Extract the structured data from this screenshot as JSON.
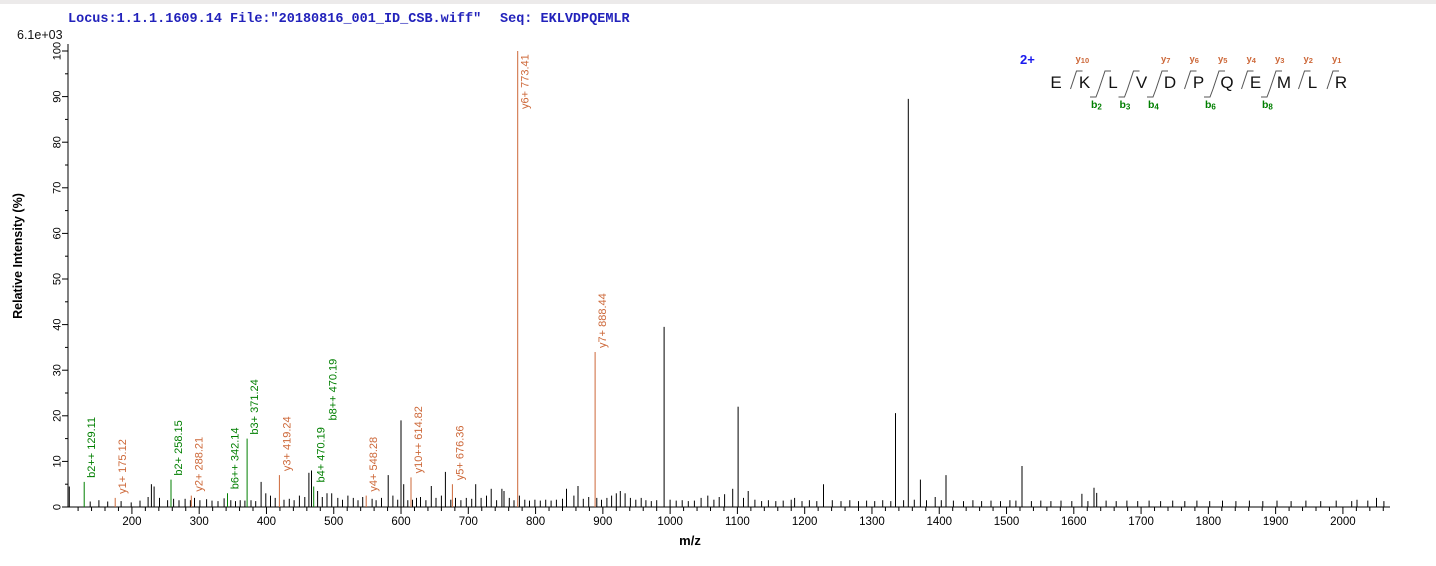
{
  "header": {
    "locus_file": "Locus:1.1.1.1609.14 File:\"20180816_001_ID_CSB.wiff\"",
    "seq_label": "Seq: ",
    "seq_value": "EKLVDPQEMLR",
    "intensity_scale": "6.1e+03"
  },
  "peptide": {
    "charge": "2+",
    "residues": [
      "E",
      "K",
      "L",
      "V",
      "D",
      "P",
      "Q",
      "E",
      "M",
      "L",
      "R"
    ],
    "y_ions": [
      {
        "gap": 1,
        "base": "y",
        "sub": "10"
      },
      {
        "gap": 4,
        "base": "y",
        "sub": "7"
      },
      {
        "gap": 5,
        "base": "y",
        "sub": "6"
      },
      {
        "gap": 6,
        "base": "y",
        "sub": "5"
      },
      {
        "gap": 7,
        "base": "y",
        "sub": "4"
      },
      {
        "gap": 8,
        "base": "y",
        "sub": "3"
      },
      {
        "gap": 9,
        "base": "y",
        "sub": "2"
      },
      {
        "gap": 10,
        "base": "y",
        "sub": "1"
      }
    ],
    "b_ions": [
      {
        "gap": 2,
        "base": "b",
        "sub": "2"
      },
      {
        "gap": 3,
        "base": "b",
        "sub": "3"
      },
      {
        "gap": 4,
        "base": "b",
        "sub": "4"
      },
      {
        "gap": 6,
        "base": "b",
        "sub": "6"
      },
      {
        "gap": 8,
        "base": "b",
        "sub": "8"
      }
    ]
  },
  "colors": {
    "y_ion": "#cd6839",
    "b_ion": "#007f00",
    "header_blue": "#2222bb",
    "charge_blue": "#1a1aee",
    "peak_black": "#000000"
  },
  "chart_data": {
    "type": "bar",
    "subtype": "ms2-mass-spectrum",
    "xlabel": "m/z",
    "ylabel": "Relative Intensity (%)",
    "x_range": [
      105,
      2070
    ],
    "ylim": [
      0,
      100
    ],
    "x_major_ticks": [
      200,
      300,
      400,
      500,
      600,
      700,
      800,
      900,
      1000,
      1100,
      1200,
      1300,
      1400,
      1500,
      1600,
      1700,
      1800,
      1900,
      2000
    ],
    "x_minor_step": 20,
    "y_major_step": 10,
    "y_minor_step": 5,
    "grid": false,
    "labeled_peaks": [
      {
        "mz": 129.11,
        "h": 5.5,
        "ion": "b",
        "labels": [
          "b2++ 129.11"
        ]
      },
      {
        "mz": 175.12,
        "h": 2.0,
        "ion": "y",
        "labels": [
          "y1+ 175.12"
        ]
      },
      {
        "mz": 258.15,
        "h": 6.0,
        "ion": "b",
        "labels": [
          "b2+ 258.15"
        ]
      },
      {
        "mz": 288.21,
        "h": 2.5,
        "ion": "y",
        "labels": [
          "y2+ 288.21"
        ]
      },
      {
        "mz": 342.14,
        "h": 3.0,
        "ion": "b",
        "labels": [
          "b6++ 342.14"
        ]
      },
      {
        "mz": 371.24,
        "h": 15.0,
        "ion": "b",
        "labels": [
          "b3+ 371.24"
        ]
      },
      {
        "mz": 419.24,
        "h": 7.0,
        "ion": "y",
        "labels": [
          "y3+ 419.24"
        ]
      },
      {
        "mz": 470.19,
        "h": 4.5,
        "ion": "b",
        "labels": [
          "b4+ 470.19",
          "b8++ 470.19"
        ]
      },
      {
        "mz": 548.28,
        "h": 2.5,
        "ion": "y",
        "labels": [
          "y4+ 548.28"
        ]
      },
      {
        "mz": 614.82,
        "h": 6.5,
        "ion": "y",
        "labels": [
          "y10++ 614.82"
        ]
      },
      {
        "mz": 676.36,
        "h": 5.0,
        "ion": "y",
        "labels": [
          "y5+ 676.36"
        ]
      },
      {
        "mz": 773.41,
        "h": 100.0,
        "ion": "y",
        "labels": [
          "y6+ 773.41"
        ]
      },
      {
        "mz": 888.44,
        "h": 34.0,
        "ion": "y",
        "labels": [
          "y7+ 888.44"
        ]
      }
    ],
    "unlabeled_peaks": [
      [
        107,
        4.5
      ],
      [
        138,
        1.2
      ],
      [
        151,
        1.5
      ],
      [
        164,
        1.2
      ],
      [
        184,
        1.3
      ],
      [
        199,
        1.0
      ],
      [
        212,
        1.4
      ],
      [
        224,
        2.2
      ],
      [
        229,
        5.0
      ],
      [
        233,
        4.5
      ],
      [
        241,
        2.0
      ],
      [
        253,
        1.5
      ],
      [
        262,
        1.8
      ],
      [
        270,
        1.5
      ],
      [
        279,
        1.8
      ],
      [
        287,
        1.5
      ],
      [
        293,
        2.0
      ],
      [
        301,
        1.5
      ],
      [
        311,
        1.7
      ],
      [
        319,
        1.4
      ],
      [
        328,
        1.3
      ],
      [
        337,
        1.9
      ],
      [
        347,
        1.5
      ],
      [
        354,
        1.3
      ],
      [
        361,
        1.5
      ],
      [
        368,
        1.4
      ],
      [
        377,
        1.5
      ],
      [
        384,
        1.3
      ],
      [
        392,
        5.5
      ],
      [
        399,
        3.0
      ],
      [
        406,
        2.5
      ],
      [
        413,
        2.0
      ],
      [
        426,
        1.6
      ],
      [
        434,
        1.8
      ],
      [
        441,
        1.5
      ],
      [
        449,
        2.5
      ],
      [
        457,
        2.2
      ],
      [
        463,
        7.5
      ],
      [
        467,
        8.0
      ],
      [
        476,
        3.5
      ],
      [
        483,
        2.2
      ],
      [
        490,
        3.0
      ],
      [
        497,
        3.0
      ],
      [
        506,
        2.0
      ],
      [
        513,
        1.6
      ],
      [
        521,
        2.5
      ],
      [
        529,
        2.0
      ],
      [
        536,
        1.5
      ],
      [
        543,
        2.2
      ],
      [
        557,
        1.8
      ],
      [
        563,
        1.5
      ],
      [
        571,
        2.0
      ],
      [
        581,
        7.0
      ],
      [
        588,
        2.5
      ],
      [
        595,
        1.6
      ],
      [
        600,
        19.0
      ],
      [
        604,
        5.0
      ],
      [
        610,
        1.5
      ],
      [
        617,
        1.6
      ],
      [
        623,
        2.0
      ],
      [
        629,
        2.2
      ],
      [
        637,
        1.5
      ],
      [
        645,
        4.6
      ],
      [
        652,
        2.0
      ],
      [
        660,
        2.5
      ],
      [
        666,
        7.7
      ],
      [
        674,
        1.6
      ],
      [
        681,
        2.0
      ],
      [
        689,
        1.5
      ],
      [
        697,
        2.0
      ],
      [
        705,
        1.8
      ],
      [
        711,
        5.0
      ],
      [
        719,
        2.0
      ],
      [
        727,
        2.5
      ],
      [
        734,
        4.0
      ],
      [
        742,
        1.5
      ],
      [
        750,
        4.0
      ],
      [
        753,
        3.5
      ],
      [
        761,
        2.0
      ],
      [
        768,
        1.5
      ],
      [
        776,
        2.5
      ],
      [
        784,
        1.6
      ],
      [
        791,
        1.4
      ],
      [
        799,
        1.6
      ],
      [
        807,
        1.4
      ],
      [
        815,
        1.6
      ],
      [
        823,
        1.4
      ],
      [
        831,
        1.6
      ],
      [
        840,
        1.8
      ],
      [
        846,
        4.0
      ],
      [
        857,
        2.5
      ],
      [
        863,
        4.6
      ],
      [
        871,
        1.8
      ],
      [
        879,
        2.2
      ],
      [
        891,
        2.0
      ],
      [
        898,
        1.6
      ],
      [
        906,
        2.0
      ],
      [
        913,
        2.5
      ],
      [
        920,
        3.0
      ],
      [
        926,
        3.5
      ],
      [
        933,
        3.0
      ],
      [
        941,
        2.0
      ],
      [
        949,
        1.6
      ],
      [
        957,
        2.0
      ],
      [
        964,
        1.5
      ],
      [
        972,
        1.3
      ],
      [
        980,
        1.5
      ],
      [
        991,
        39.5
      ],
      [
        1000,
        1.6
      ],
      [
        1009,
        1.4
      ],
      [
        1018,
        1.5
      ],
      [
        1027,
        1.3
      ],
      [
        1036,
        1.4
      ],
      [
        1046,
        2.0
      ],
      [
        1056,
        2.5
      ],
      [
        1065,
        1.6
      ],
      [
        1073,
        2.2
      ],
      [
        1081,
        2.8
      ],
      [
        1093,
        4.0
      ],
      [
        1101,
        22.0
      ],
      [
        1109,
        2.0
      ],
      [
        1116,
        3.5
      ],
      [
        1126,
        1.6
      ],
      [
        1136,
        1.3
      ],
      [
        1146,
        1.5
      ],
      [
        1157,
        1.3
      ],
      [
        1168,
        1.4
      ],
      [
        1180,
        1.6
      ],
      [
        1185,
        2.0
      ],
      [
        1196,
        1.3
      ],
      [
        1207,
        1.5
      ],
      [
        1218,
        1.3
      ],
      [
        1228,
        5.0
      ],
      [
        1241,
        1.5
      ],
      [
        1254,
        1.3
      ],
      [
        1267,
        1.5
      ],
      [
        1280,
        1.3
      ],
      [
        1292,
        1.4
      ],
      [
        1304,
        1.3
      ],
      [
        1316,
        1.5
      ],
      [
        1328,
        1.3
      ],
      [
        1335,
        20.6
      ],
      [
        1347,
        1.5
      ],
      [
        1354,
        89.5
      ],
      [
        1363,
        1.6
      ],
      [
        1372,
        6.0
      ],
      [
        1381,
        1.5
      ],
      [
        1394,
        2.2
      ],
      [
        1403,
        1.5
      ],
      [
        1410,
        7.0
      ],
      [
        1421,
        1.4
      ],
      [
        1436,
        1.3
      ],
      [
        1450,
        1.5
      ],
      [
        1463,
        1.3
      ],
      [
        1477,
        1.4
      ],
      [
        1491,
        1.3
      ],
      [
        1505,
        1.5
      ],
      [
        1514,
        1.4
      ],
      [
        1523,
        9.0
      ],
      [
        1537,
        1.3
      ],
      [
        1551,
        1.4
      ],
      [
        1566,
        1.3
      ],
      [
        1581,
        1.4
      ],
      [
        1597,
        1.3
      ],
      [
        1612,
        2.9
      ],
      [
        1621,
        1.3
      ],
      [
        1630,
        4.2
      ],
      [
        1634,
        3.1
      ],
      [
        1648,
        1.4
      ],
      [
        1663,
        1.3
      ],
      [
        1679,
        1.4
      ],
      [
        1695,
        1.3
      ],
      [
        1712,
        1.4
      ],
      [
        1729,
        1.3
      ],
      [
        1747,
        1.4
      ],
      [
        1765,
        1.3
      ],
      [
        1783,
        1.4
      ],
      [
        1802,
        1.3
      ],
      [
        1821,
        1.4
      ],
      [
        1841,
        1.3
      ],
      [
        1861,
        1.4
      ],
      [
        1881,
        1.3
      ],
      [
        1902,
        1.4
      ],
      [
        1923,
        1.3
      ],
      [
        1945,
        1.4
      ],
      [
        1967,
        1.3
      ],
      [
        1990,
        1.4
      ],
      [
        2013,
        1.3
      ],
      [
        2021,
        1.6
      ],
      [
        2037,
        1.4
      ],
      [
        2050,
        2.0
      ],
      [
        2061,
        1.3
      ]
    ]
  }
}
